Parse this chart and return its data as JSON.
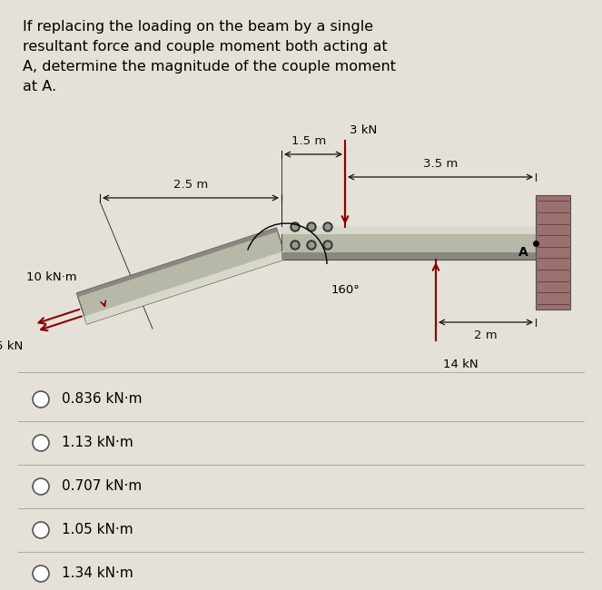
{
  "title": "If replacing the loading on the beam by a single\nresultant force and couple moment both acting at\nA, determine the magnitude of the couple moment\nat A.",
  "title_fontsize": 11.5,
  "bg_color": "#e5e1d8",
  "options": [
    "0.836 kN·m",
    "1.13 kN·m",
    "0.707 kN·m",
    "1.05 kN·m",
    "1.34 kN·m"
  ],
  "beam_fill": "#b8b8a8",
  "beam_top_highlight": "#d8d8cc",
  "beam_bot_shadow": "#888880",
  "beam_edge": "#505050",
  "wall_fill": "#9b7070",
  "wall_line": "#6b4040",
  "arrow_dark": "#8B0000",
  "arrow_black": "#111111",
  "dim_color": "#111111",
  "hole_dark": "#333333",
  "hole_mid": "#999988"
}
